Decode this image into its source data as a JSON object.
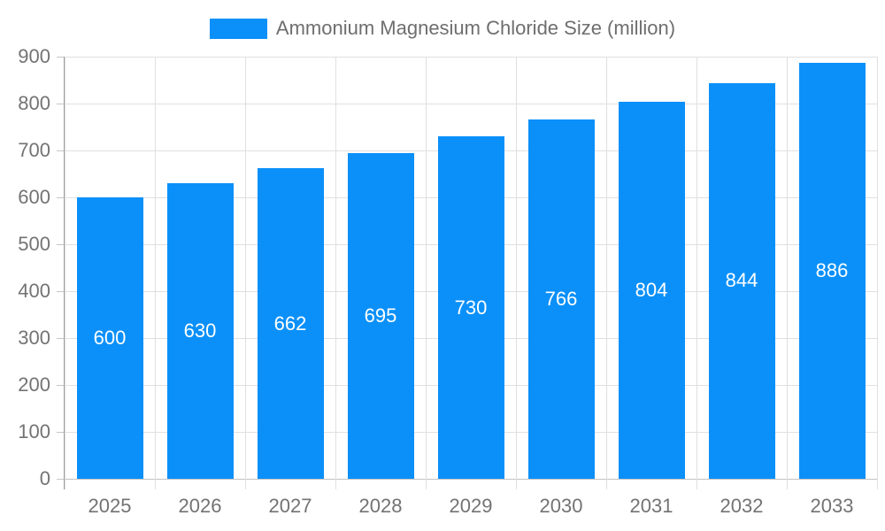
{
  "chart_data": {
    "type": "bar",
    "title": "Ammonium Magnesium Chloride Size (million)",
    "legend": [
      "Ammonium Magnesium Chloride Size (million)"
    ],
    "legend_position": "top-center",
    "categories": [
      "2025",
      "2026",
      "2027",
      "2028",
      "2029",
      "2030",
      "2031",
      "2032",
      "2033"
    ],
    "values": [
      600,
      630,
      662,
      695,
      730,
      766,
      804,
      844,
      886
    ],
    "xlabel": "",
    "ylabel": "",
    "ylim": [
      0,
      900
    ],
    "ytick_interval": 100,
    "yticks": [
      "0",
      "100",
      "200",
      "300",
      "400",
      "500",
      "600",
      "700",
      "800",
      "900"
    ],
    "grid": true,
    "colors": {
      "bar": "#0b90f9",
      "value_label": "#ffffff",
      "legend_text": "#6e6e6e",
      "axis_text": "#737373",
      "gridline": "#e0e0e0",
      "baseline": "#c2c2c2",
      "axis_line": "#9e9e9e",
      "tick_line": "#c6c6c6",
      "background": "#ffffff"
    }
  }
}
